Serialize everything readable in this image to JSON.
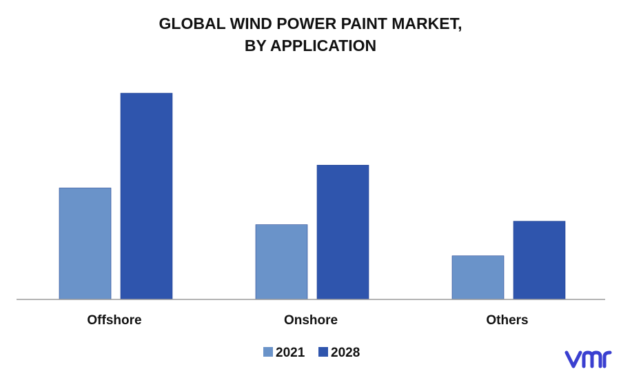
{
  "chart_data": {
    "type": "bar",
    "title_lines": [
      "GLOBAL WIND POWER PAINT MARKET,",
      "BY APPLICATION"
    ],
    "categories": [
      "Offshore",
      "Onshore",
      "Others"
    ],
    "series": [
      {
        "name": "2021",
        "values": [
          161,
          108,
          63
        ],
        "color": "#6a93c9"
      },
      {
        "name": "2028",
        "values": [
          298,
          194,
          113
        ],
        "color": "#2f55ad"
      }
    ],
    "ylim": [
      0,
      320
    ],
    "grid": false,
    "legend": "bottom-center",
    "xlabel": "",
    "ylabel": ""
  },
  "logo": {
    "color": "#3a3fd0",
    "icon": "vmr-logo-icon"
  }
}
